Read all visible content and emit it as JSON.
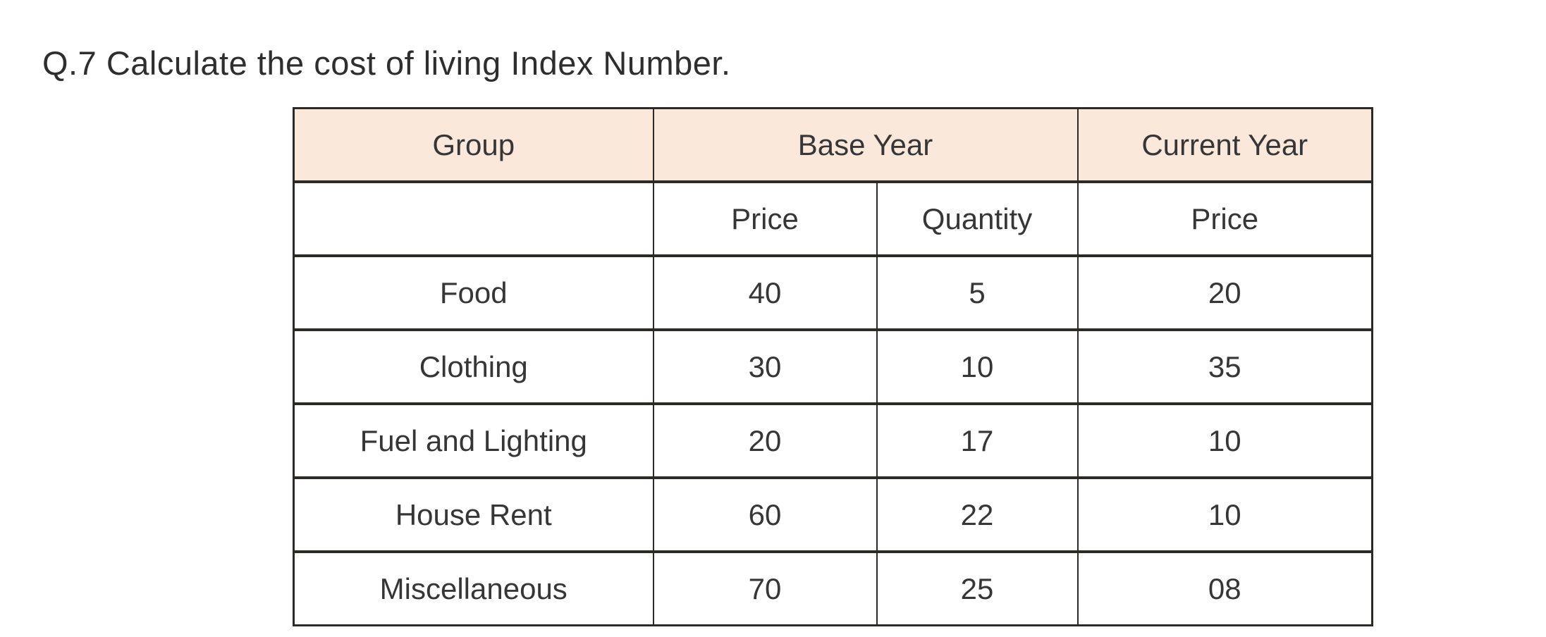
{
  "question": {
    "text": "Q.7 Calculate the cost of living Index Number."
  },
  "table": {
    "header": {
      "group": "Group",
      "base_year": "Base Year",
      "current_year": "Current Year"
    },
    "subheader": {
      "group": "",
      "base_price": "Price",
      "base_quantity": "Quantity",
      "current_price": "Price"
    },
    "rows": [
      {
        "group": "Food",
        "base_price": "40",
        "base_quantity": "5",
        "current_price": "20"
      },
      {
        "group": "Clothing",
        "base_price": "30",
        "base_quantity": "10",
        "current_price": "35"
      },
      {
        "group": "Fuel and Lighting",
        "base_price": "20",
        "base_quantity": "17",
        "current_price": "10"
      },
      {
        "group": "House Rent",
        "base_price": "60",
        "base_quantity": "22",
        "current_price": "10"
      },
      {
        "group": "Miscellaneous",
        "base_price": "70",
        "base_quantity": "25",
        "current_price": "08"
      }
    ],
    "colors": {
      "header_background": "#fae8da",
      "border": "#2c2a27",
      "text": "#363636"
    }
  }
}
